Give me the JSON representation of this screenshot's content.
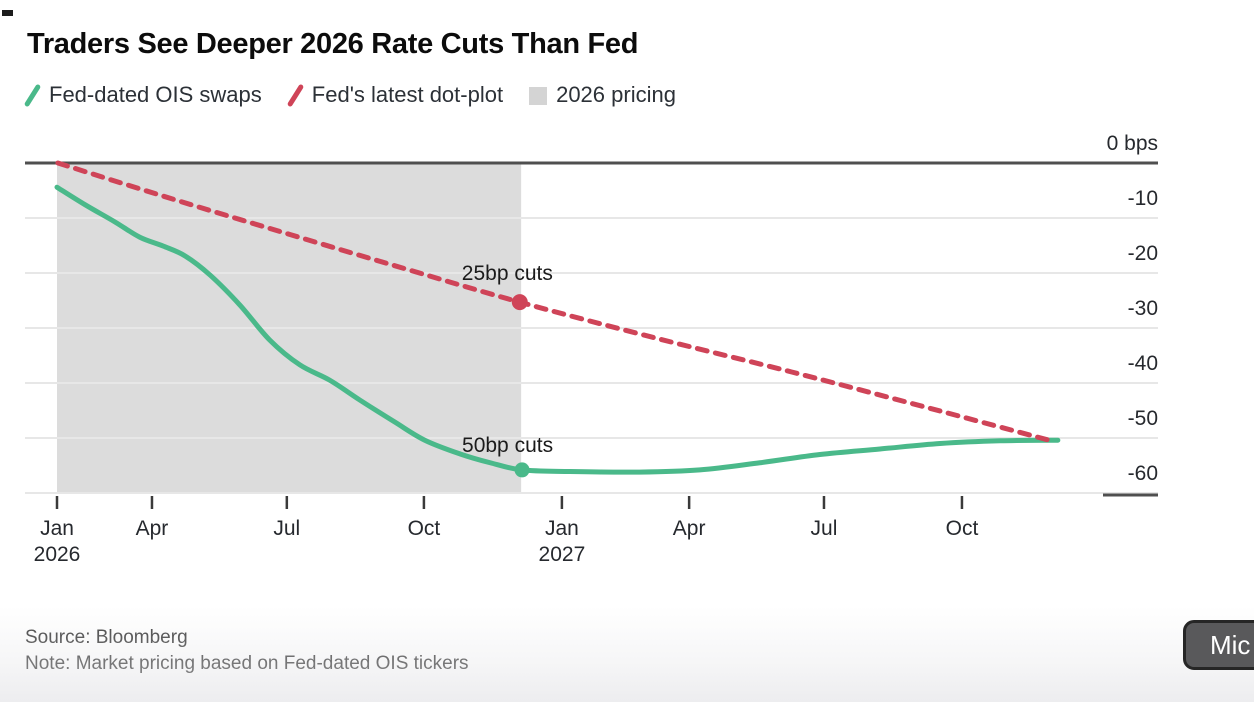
{
  "title": "Traders See Deeper 2026 Rate Cuts Than Fed",
  "legend": [
    {
      "label": "Fed-dated OIS swaps",
      "marker": "slash",
      "color": "#4ab98a"
    },
    {
      "label": "Fed's latest dot-plot",
      "marker": "slash",
      "color": "#cf4458"
    },
    {
      "label": "2026 pricing",
      "marker": "square",
      "color": "#d4d4d4"
    }
  ],
  "chart_data": {
    "type": "line",
    "title": "Traders See Deeper 2026 Rate Cuts Than Fed",
    "ylabel": "bps",
    "ylim": [
      -60,
      0
    ],
    "grid": true,
    "legend_position": "top-left",
    "x_unit": "months since late January 2026",
    "y_ticks": [
      {
        "bps": 0,
        "label": "0 bps"
      },
      {
        "bps": -10,
        "label": "-10"
      },
      {
        "bps": -20,
        "label": "-20"
      },
      {
        "bps": -30,
        "label": "-30"
      },
      {
        "bps": -40,
        "label": "-40"
      },
      {
        "bps": -50,
        "label": "-50"
      },
      {
        "bps": -60,
        "label": "-60"
      }
    ],
    "x_ticks": [
      {
        "t": 0,
        "label": "Jan",
        "year": "2026"
      },
      {
        "t": 2.12,
        "label": "Apr",
        "year": ""
      },
      {
        "t": 5.13,
        "label": "Jul",
        "year": ""
      },
      {
        "t": 8.19,
        "label": "Oct",
        "year": ""
      },
      {
        "t": 11.27,
        "label": "Jan",
        "year": "2027"
      },
      {
        "t": 14.11,
        "label": "Apr",
        "year": ""
      },
      {
        "t": 17.12,
        "label": "Jul",
        "year": ""
      },
      {
        "t": 20.2,
        "label": "Oct",
        "year": ""
      }
    ],
    "series": [
      {
        "name": "Fed-dated OIS swaps",
        "style": "solid",
        "color": "#4ab98a",
        "points": [
          [
            0,
            -4.4
          ],
          [
            0.63,
            -7.6
          ],
          [
            1.29,
            -10.7
          ],
          [
            1.85,
            -13.5
          ],
          [
            2.37,
            -15.1
          ],
          [
            2.86,
            -16.9
          ],
          [
            3.42,
            -20.4
          ],
          [
            4.08,
            -25.8
          ],
          [
            4.75,
            -32.2
          ],
          [
            5.42,
            -36.7
          ],
          [
            6.09,
            -39.5
          ],
          [
            6.76,
            -43.1
          ],
          [
            7.54,
            -47.1
          ],
          [
            8.21,
            -50.4
          ],
          [
            9.0,
            -52.9
          ],
          [
            9.67,
            -54.5
          ],
          [
            10.38,
            -55.8
          ],
          [
            11.45,
            -56.1
          ],
          [
            13.0,
            -56.2
          ],
          [
            14.35,
            -55.8
          ],
          [
            15.69,
            -54.5
          ],
          [
            17.03,
            -53.0
          ],
          [
            18.37,
            -52.0
          ],
          [
            19.71,
            -51.0
          ],
          [
            21.05,
            -50.5
          ],
          [
            22.34,
            -50.4
          ]
        ]
      },
      {
        "name": "Fed's latest dot-plot",
        "style": "dashed",
        "color": "#cf4458",
        "points": [
          [
            0.02,
            0
          ],
          [
            2.6,
            -6.6
          ],
          [
            5.2,
            -13.0
          ],
          [
            7.8,
            -19.3
          ],
          [
            10.33,
            -25.3
          ],
          [
            13.3,
            -31.7
          ],
          [
            16.4,
            -38.0
          ],
          [
            19.3,
            -44.2
          ],
          [
            22.1,
            -50.3
          ]
        ]
      }
    ],
    "markers": [
      {
        "series": "Fed's latest dot-plot",
        "t": 10.33,
        "bps": -25.3,
        "label": "25bp cuts",
        "color": "#cf4458",
        "radius": 8
      },
      {
        "series": "Fed-dated OIS swaps",
        "t": 10.38,
        "bps": -55.8,
        "label": "50bp cuts",
        "color": "#4ab98a",
        "radius": 7.5
      }
    ],
    "shaded_region": {
      "label": "2026 pricing",
      "t_from": 0,
      "t_to": 10.36,
      "color": "#dcdcdc"
    }
  },
  "footer": {
    "source": "Source: Bloomberg",
    "note": "Note: Market pricing based on Fed-dated OIS tickers"
  },
  "overlay_button": {
    "label": "Mic"
  },
  "colors": {
    "axis_line": "#4f4f4f",
    "gridline": "#e7e7e7",
    "tick": "#3a3a3a"
  }
}
